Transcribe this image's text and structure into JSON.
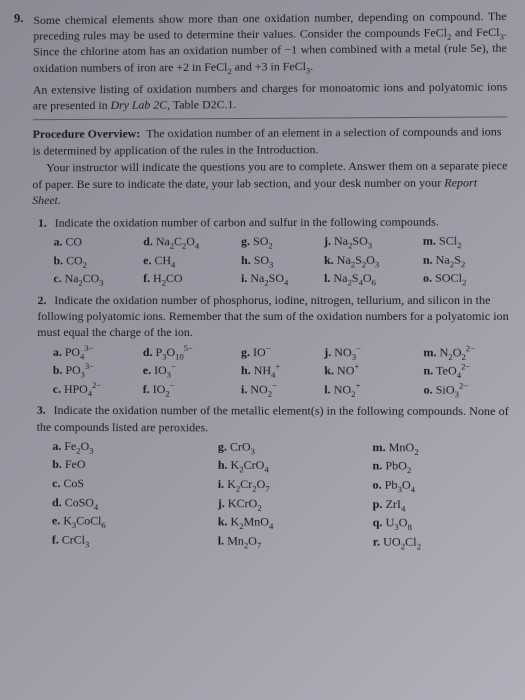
{
  "question_number": "9.",
  "intro_p1": "Some chemical elements show more than one oxidation number, depending on compound. The preceding rules may be used to determine their values. Consider the compounds FeCl₂ and FeCl₃. Since the chlorine atom has an oxidation number of −1 when combined with a metal (rule 5e), the oxidation numbers of iron are +2 in FeCl₂ and +3 in FeCl₃.",
  "intro_p2": "An extensive listing of oxidation numbers and charges for monoatomic ions and polyatomic ions are presented in Dry Lab 2C, Table D2C.1.",
  "proc_heading": "Procedure Overview:",
  "proc_body1": "The oxidation number of an element in a selection of compounds and ions is determined by application of the rules in the Introduction.",
  "proc_body2": "Your instructor will indicate the questions you are to complete. Answer them on a separate piece of paper. Be sure to indicate the date, your lab section, and your desk number on your Report Sheet.",
  "q1": {
    "prompt": "Indicate the oxidation number of carbon and sulfur in the following compounds.",
    "items": {
      "a": "CO",
      "d": "Na₂C₂O₄",
      "g": "SO₂",
      "j": "Na₂SO₃",
      "m": "SCl₂",
      "b": "CO₂",
      "e": "CH₄",
      "h": "SO₃",
      "k": "Na₂S₂O₃",
      "n": "Na₂S₂",
      "c": "Na₂CO₃",
      "f": "H₂CO",
      "i": "Na₂SO₄",
      "l": "Na₂S₄O₆",
      "o": "SOCl₂"
    }
  },
  "q2": {
    "prompt": "Indicate the oxidation number of phosphorus, iodine, nitrogen, tellurium, and silicon in the following polyatomic ions. Remember that the sum of the oxidation numbers for a polyatomic ion must equal the charge of the ion.",
    "items": {
      "a": "PO₄³⁻",
      "d": "P₃O₁₀⁵⁻",
      "g": "IO⁻",
      "j": "NO₃⁻",
      "m": "N₂O₂²⁻",
      "b": "PO₃³⁻",
      "e": "IO₃⁻",
      "h": "NH₄⁺",
      "k": "NO⁺",
      "n": "TeO₄²⁻",
      "c": "HPO₄²⁻",
      "f": "IO₂⁻",
      "i": "NO₂⁻",
      "l": "NO₂⁺",
      "o": "SiO₃²⁻"
    }
  },
  "q3": {
    "prompt": "Indicate the oxidation number of the metallic element(s) in the following compounds. None of the compounds listed are peroxides.",
    "items": {
      "a": "Fe₂O₃",
      "g": "CrO₃",
      "m": "MnO₂",
      "b": "FeO",
      "h": "K₂CrO₄",
      "n": "PbO₂",
      "c": "CoS",
      "i": "K₂Cr₂O₇",
      "o": "Pb₃O₄",
      "d": "CoSO₄",
      "j": "KCrO₂",
      "p": "ZrI₄",
      "e": "K₃CoCl₆",
      "k": "K₂MnO₄",
      "q": "U₃O₈",
      "f": "CrCl₃",
      "l": "Mn₂O₇",
      "r": "UO₂Cl₂"
    }
  }
}
